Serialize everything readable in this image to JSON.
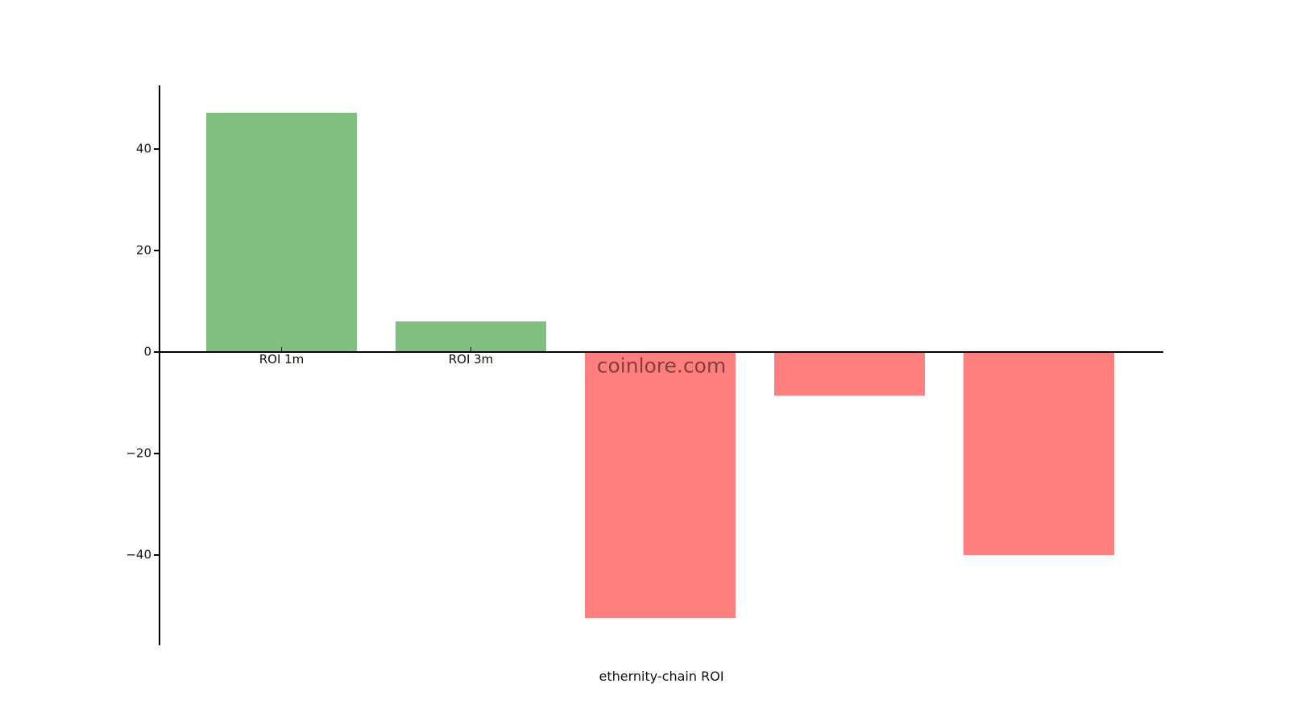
{
  "chart_data": {
    "type": "bar",
    "title": "",
    "xlabel": "ethernity-chain ROI",
    "ylabel": "",
    "watermark": "coinlore.com",
    "watermark_color": "#00000080",
    "categories": [
      "ROI 1m",
      "ROI 3m",
      "",
      "",
      ""
    ],
    "values": [
      47.1,
      6,
      -52.4,
      -8.6,
      -40
    ],
    "positive_color": "#7fbf7f",
    "negative_color": "#ff7f7f",
    "axis_color": "#000000",
    "text_color": "#111111",
    "yticks": [
      {
        "value": 40,
        "label": "40"
      },
      {
        "value": 20,
        "label": "20"
      },
      {
        "value": 0,
        "label": "0"
      },
      {
        "value": -20,
        "label": "−20"
      },
      {
        "value": -40,
        "label": "−40"
      }
    ],
    "ylim": [
      -57.8,
      52.5
    ],
    "grid": false,
    "legend": null
  }
}
